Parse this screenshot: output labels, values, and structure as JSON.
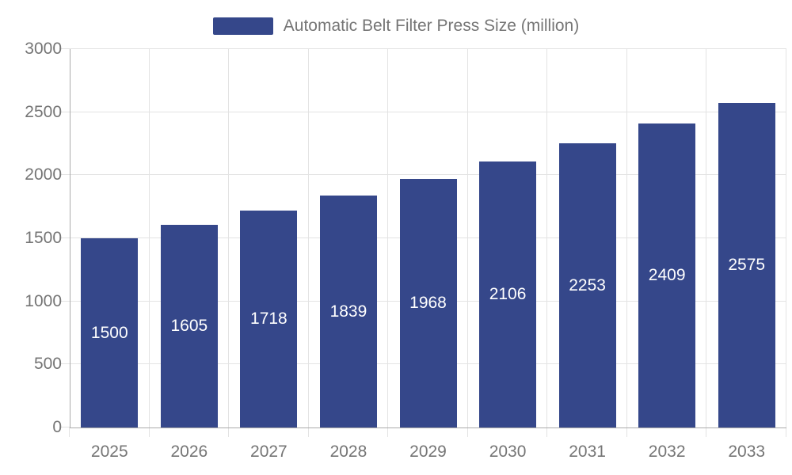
{
  "colors": {
    "bar": "#35478a",
    "bar_label_text": "#ffffff",
    "grid_line": "#e3e3e3",
    "axis_line": "#aaaaaa",
    "axis_text": "#757575",
    "background": "#ffffff"
  },
  "chart_data": {
    "type": "bar",
    "categories": [
      "2025",
      "2026",
      "2027",
      "2028",
      "2029",
      "2030",
      "2031",
      "2032",
      "2033"
    ],
    "series": [
      {
        "name": "Automatic Belt Filter Press Size (million)",
        "values": [
          1500,
          1605,
          1718,
          1839,
          1968,
          2106,
          2253,
          2409,
          2575
        ]
      }
    ],
    "xlabel": "",
    "ylabel": "",
    "ylim": [
      0,
      3000
    ],
    "ytick_step": 500,
    "ytick_labels": [
      "0",
      "500",
      "1000",
      "1500",
      "2000",
      "2500",
      "3000"
    ],
    "grid": true,
    "legend_position": "top-center",
    "bar_value_labels": "inside-center"
  }
}
